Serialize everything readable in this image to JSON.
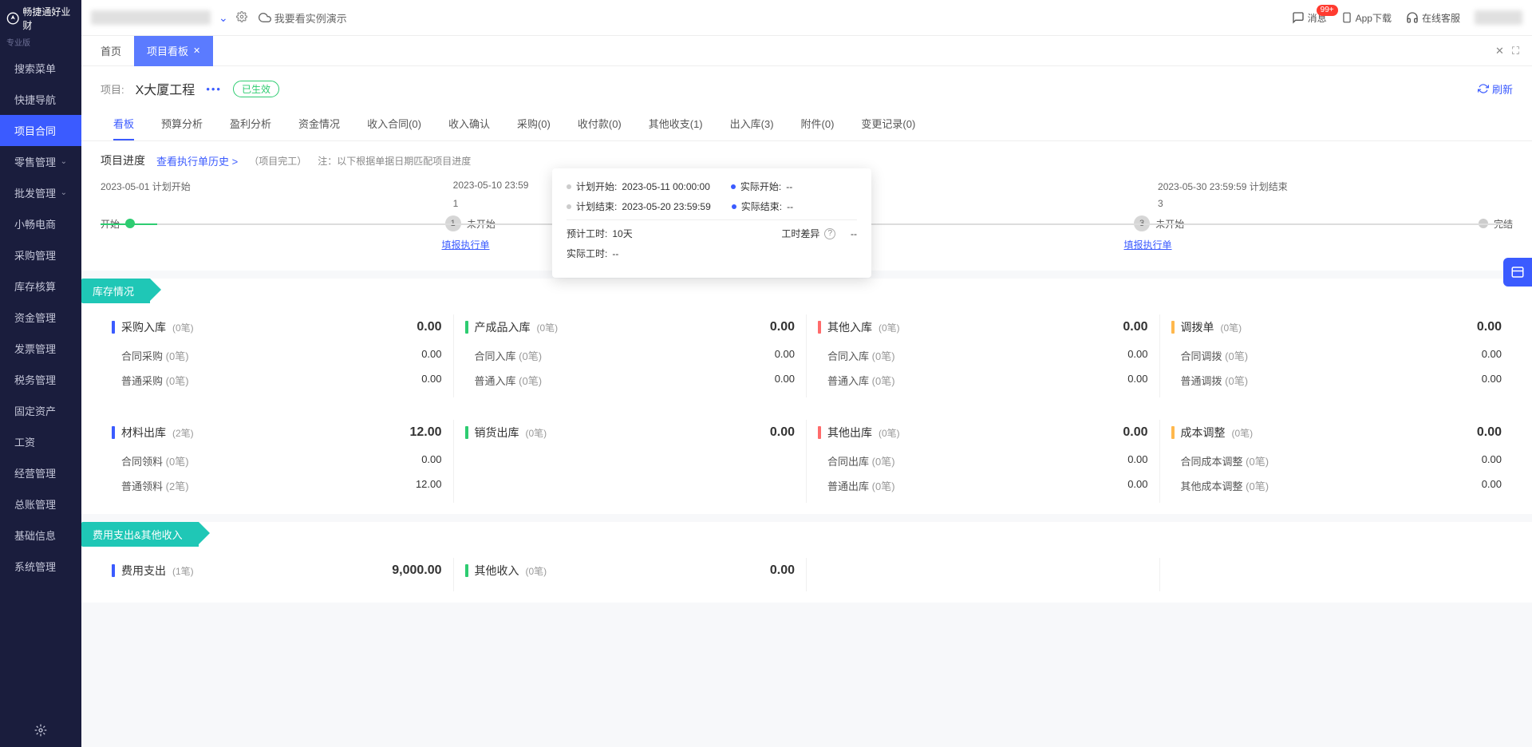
{
  "brand": {
    "name": "畅捷通好业财",
    "edition": "专业版"
  },
  "sidebar": {
    "items": [
      {
        "label": "搜索菜单",
        "chev": false
      },
      {
        "label": "快捷导航",
        "chev": false
      },
      {
        "label": "项目合同",
        "chev": false,
        "active": true
      },
      {
        "label": "零售管理",
        "chev": true
      },
      {
        "label": "批发管理",
        "chev": true
      },
      {
        "label": "小畅电商",
        "chev": false
      },
      {
        "label": "采购管理",
        "chev": false
      },
      {
        "label": "库存核算",
        "chev": false
      },
      {
        "label": "资金管理",
        "chev": false
      },
      {
        "label": "发票管理",
        "chev": false
      },
      {
        "label": "税务管理",
        "chev": false
      },
      {
        "label": "固定资产",
        "chev": false
      },
      {
        "label": "工资",
        "chev": false
      },
      {
        "label": "经营管理",
        "chev": false
      },
      {
        "label": "总账管理",
        "chev": false
      },
      {
        "label": "基础信息",
        "chev": false
      },
      {
        "label": "系统管理",
        "chev": false
      }
    ]
  },
  "topbar": {
    "demo": "我要看实例演示",
    "msg": "消息",
    "msg_badge": "99+",
    "app": "App下载",
    "service": "在线客服"
  },
  "tabs": [
    {
      "label": "首页",
      "active": false,
      "closable": false
    },
    {
      "label": "项目看板",
      "active": true,
      "closable": true
    }
  ],
  "header": {
    "label": "项目:",
    "name": "X大厦工程",
    "status": "已生效",
    "refresh": "刷新"
  },
  "subtabs": [
    "看板",
    "预算分析",
    "盈利分析",
    "资金情况",
    "收入合同(0)",
    "收入确认",
    "",
    "",
    "",
    "采购(0)",
    "收付款(0)",
    "其他收支(1)",
    "出入库(3)",
    "附件(0)",
    "变更记录(0)"
  ],
  "active_subtab": 0,
  "tooltip": {
    "plan_start_label": "计划开始:",
    "plan_start": "2023-05-11 00:00:00",
    "actual_start_label": "实际开始:",
    "actual_start": "--",
    "plan_end_label": "计划结束:",
    "plan_end": "2023-05-20 23:59:59",
    "actual_end_label": "实际结束:",
    "actual_end": "--",
    "est_hours_label": "预计工时:",
    "est_hours": "10天",
    "diff_label": "工时差异",
    "diff": "--",
    "actual_hours_label": "实际工时:",
    "actual_hours": "--"
  },
  "progress": {
    "title": "项目进度",
    "history_link": "查看执行单历史 >",
    "stage_label": "（项目完工）",
    "note": "注：以下根据单据日期匹配项目进度",
    "cols": [
      {
        "date": "2023-05-01 计划开始",
        "stage": "",
        "num": "",
        "status": "开始",
        "act": ""
      },
      {
        "date": "2023-05-10 23:59",
        "stage": "1",
        "num": "1",
        "status": "未开始",
        "act": "填报执行单"
      },
      {
        "date": "",
        "stage": "2",
        "num": "2",
        "status": "未开始",
        "act": "填报执行单"
      },
      {
        "date": "2023-05-30 23:59:59 计划结束",
        "stage": "3",
        "num": "3",
        "status": "未开始",
        "act": "填报执行单"
      }
    ],
    "end_label": "完结"
  },
  "sec1_title": "库存情况",
  "inv_cards": [
    {
      "color": "#3b5bff",
      "title": "采购入库",
      "count": "(0笔)",
      "val": "0.00",
      "rows": [
        {
          "l": "合同采购",
          "c": "(0笔)",
          "v": "0.00"
        },
        {
          "l": "普通采购",
          "c": "(0笔)",
          "v": "0.00"
        }
      ]
    },
    {
      "color": "#2ecc71",
      "title": "产成品入库",
      "count": "(0笔)",
      "val": "0.00",
      "rows": [
        {
          "l": "合同入库",
          "c": "(0笔)",
          "v": "0.00"
        },
        {
          "l": "普通入库",
          "c": "(0笔)",
          "v": "0.00"
        }
      ]
    },
    {
      "color": "#ff6b6b",
      "title": "其他入库",
      "count": "(0笔)",
      "val": "0.00",
      "rows": [
        {
          "l": "合同入库",
          "c": "(0笔)",
          "v": "0.00"
        },
        {
          "l": "普通入库",
          "c": "(0笔)",
          "v": "0.00"
        }
      ]
    },
    {
      "color": "#ffb84d",
      "title": "调拨单",
      "count": "(0笔)",
      "val": "0.00",
      "rows": [
        {
          "l": "合同调拨",
          "c": "(0笔)",
          "v": "0.00"
        },
        {
          "l": "普通调拨",
          "c": "(0笔)",
          "v": "0.00"
        }
      ]
    }
  ],
  "inv_cards2": [
    {
      "color": "#3b5bff",
      "title": "材料出库",
      "count": "(2笔)",
      "val": "12.00",
      "rows": [
        {
          "l": "合同领料",
          "c": "(0笔)",
          "v": "0.00"
        },
        {
          "l": "普通领料",
          "c": "(2笔)",
          "v": "12.00"
        }
      ]
    },
    {
      "color": "#2ecc71",
      "title": "销货出库",
      "count": "(0笔)",
      "val": "0.00",
      "rows": []
    },
    {
      "color": "#ff6b6b",
      "title": "其他出库",
      "count": "(0笔)",
      "val": "0.00",
      "rows": [
        {
          "l": "合同出库",
          "c": "(0笔)",
          "v": "0.00"
        },
        {
          "l": "普通出库",
          "c": "(0笔)",
          "v": "0.00"
        }
      ]
    },
    {
      "color": "#ffb84d",
      "title": "成本调整",
      "count": "(0笔)",
      "val": "0.00",
      "rows": [
        {
          "l": "合同成本调整",
          "c": "(0笔)",
          "v": "0.00"
        },
        {
          "l": "其他成本调整",
          "c": "(0笔)",
          "v": "0.00"
        }
      ]
    }
  ],
  "sec2_title": "费用支出&其他收入",
  "exp_cards": [
    {
      "color": "#3b5bff",
      "title": "费用支出",
      "count": "(1笔)",
      "val": "9,000.00",
      "rows": []
    },
    {
      "color": "#2ecc71",
      "title": "其他收入",
      "count": "(0笔)",
      "val": "0.00",
      "rows": []
    },
    {
      "color": "",
      "title": "",
      "count": "",
      "val": "",
      "rows": []
    },
    {
      "color": "",
      "title": "",
      "count": "",
      "val": "",
      "rows": []
    }
  ]
}
